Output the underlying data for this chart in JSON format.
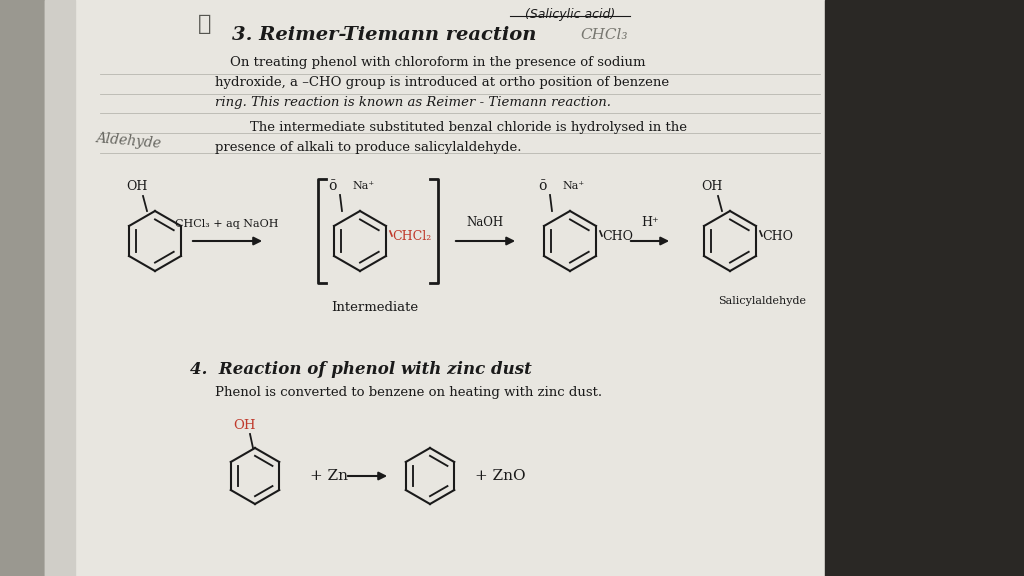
{
  "bg_left": "#b8b5aa",
  "bg_page": "#e8e6e0",
  "bg_right": "#2a2825",
  "title": "3. Reimer-Tiemann reaction",
  "note_top": "(Salicylic acid)",
  "handwritten_top": "CHCl₃",
  "paragraph1_line1": "On treating phenol with chloroform in the presence of sodium",
  "paragraph1_line2": "hydroxide, a –CHO group is introduced at ortho position of benzene",
  "paragraph1_line3": "ring. This reaction is known as Reimer - Tiemann reaction.",
  "paragraph2_line1": "The intermediate substituted benzal chloride is hydrolysed in the",
  "paragraph2_line2": "presence of alkali to produce salicylaldehyde.",
  "handwritten_left": "Aldehyde",
  "label_OH_1": "OH",
  "label_arrow1": "CHCl₃ + aq NaOH",
  "label_O_bar": "ō Na⁺",
  "label_CHCl2": "CHCl₂",
  "label_bracket_O": "ō Na⁺",
  "label_CHO_3": "CHO",
  "label_NaOH": "NaOH",
  "label_Hplus": "H⁺",
  "label_OH_4": "OH",
  "label_CHO_4": "CHO",
  "label_intermediate": "Intermediate",
  "label_salicylaldehyde": "Salicylaldehyde",
  "section4_title": "4.  Reaction of phenol with zinc dust",
  "section4_text": "Phenol is converted to benzene on heating with zinc dust.",
  "label_OH_bot": "OH",
  "label_Zn": "+ Zn",
  "label_ZnO": "+ ZnO",
  "text_color": "#1a1a1a",
  "red_color": "#c0392b",
  "line_color": "#888880"
}
